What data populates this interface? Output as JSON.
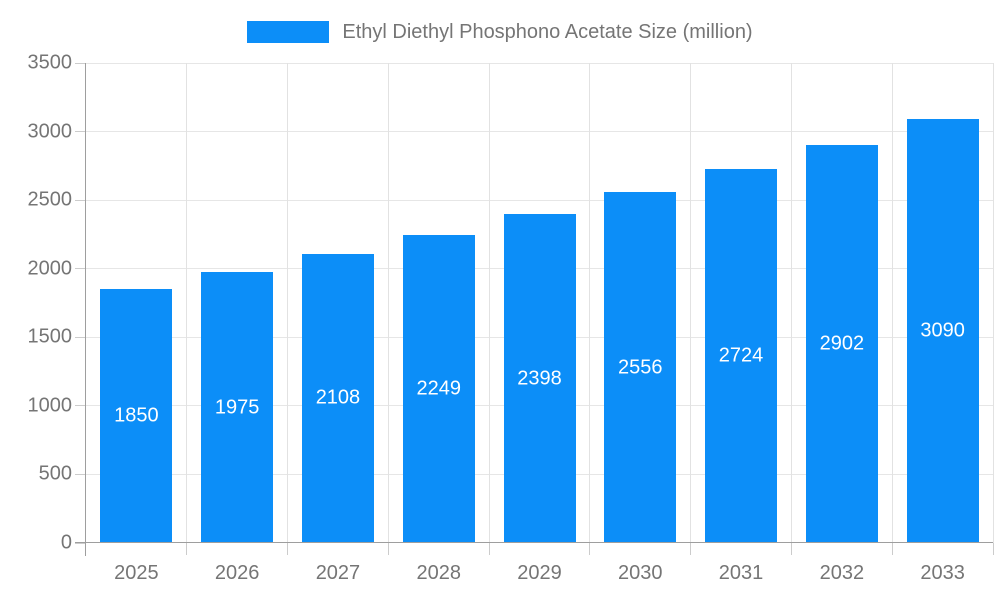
{
  "chart_data": {
    "type": "bar",
    "title": "Ethyl Diethyl Phosphono Acetate Size (million)",
    "legend": {
      "label": "Ethyl Diethyl Phosphono Acetate Size (million)",
      "position": "top"
    },
    "categories": [
      "2025",
      "2026",
      "2027",
      "2028",
      "2029",
      "2030",
      "2031",
      "2032",
      "2033"
    ],
    "values": [
      1850,
      1975,
      2108,
      2249,
      2398,
      2556,
      2724,
      2902,
      3090
    ],
    "value_labels_visible": true,
    "xlabel": "",
    "ylabel": "",
    "ylim": [
      0,
      3500
    ],
    "ytick_labels": [
      "0",
      "500",
      "1000",
      "1500",
      "2000",
      "2500",
      "3000",
      "3500"
    ],
    "ytick_step": 500,
    "grid": "on",
    "colors": {
      "bar": "#0c8ef8",
      "bar_value_label": "#ffffff",
      "axis_label": "#757575",
      "legend_text": "#757575",
      "gridline": "#e6e6e6",
      "axis_line": "#9e9e9e",
      "tick": "#cccccc",
      "background": "#ffffff"
    }
  }
}
